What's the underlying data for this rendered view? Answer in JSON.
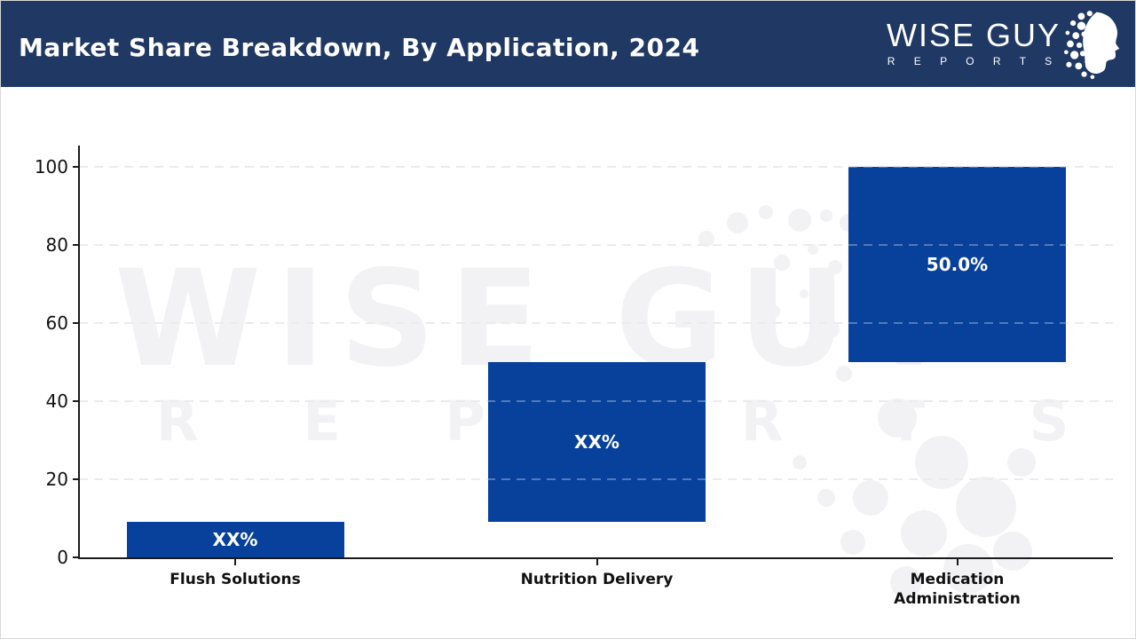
{
  "header": {
    "title": "Market Share Breakdown, By Application, 2024",
    "logo_line1": "WISE GUY",
    "logo_line2": "R E P O R T S"
  },
  "watermark": {
    "line1": "WISE GUY",
    "line2": "R E P O R T S"
  },
  "chart_data": {
    "type": "bar",
    "subtype": "floating-waterfall",
    "title": "Market Share Breakdown, By Application, 2024",
    "categories": [
      "Flush Solutions",
      "Nutrition Delivery",
      "Medication\nAdministration"
    ],
    "segments": [
      {
        "category": "Flush Solutions",
        "start": 0,
        "end": 9,
        "label": "XX%"
      },
      {
        "category": "Nutrition Delivery",
        "start": 9,
        "end": 50,
        "label": "XX%"
      },
      {
        "category": "Medication Administration",
        "start": 50,
        "end": 100,
        "label": "50.0%"
      }
    ],
    "xlabel": "",
    "ylabel": "",
    "yticks": [
      0,
      20,
      40,
      60,
      80,
      100
    ],
    "ylim": [
      0,
      105
    ],
    "grid": "horizontal-dashed",
    "legend": "none"
  },
  "colors": {
    "header_bg": "#203864",
    "bar": "#08419c",
    "bar_label": "#ffffff",
    "grid": "#e2e2e2",
    "axis": "#1a1a1a",
    "watermark": "#f2f2f4",
    "text": "#111111"
  }
}
